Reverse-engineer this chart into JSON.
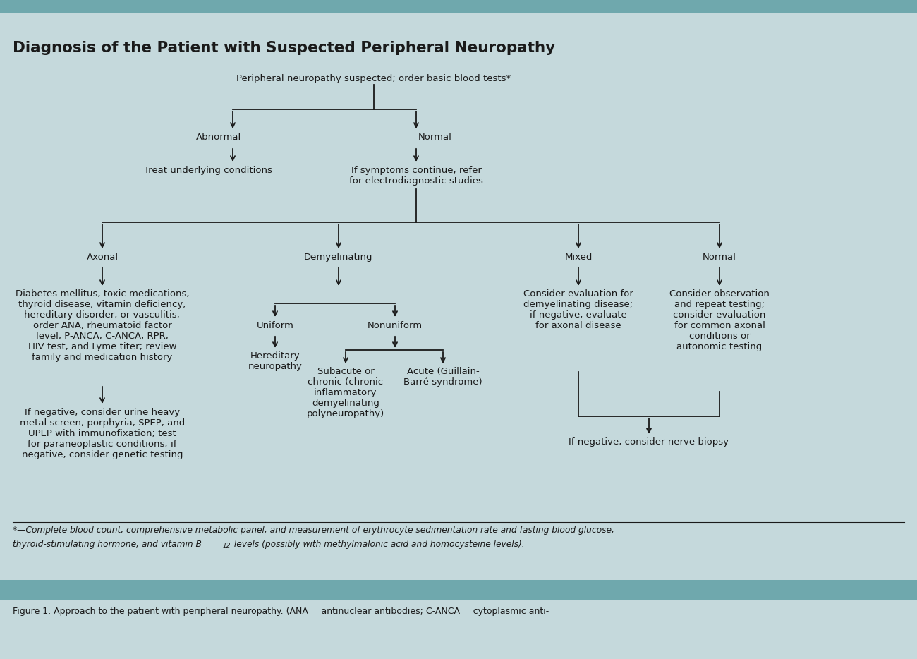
{
  "title": "Diagnosis of the Patient with Suspected Peripheral Neuropathy",
  "bg_color": "#c5d9dc",
  "header_color": "#6fa8ad",
  "footer_color": "#6fa8ad",
  "text_color": "#1a1a1a",
  "line_color": "#1a1a1a",
  "footnote_line1": "*—Complete blood count, comprehensive metabolic panel, and measurement of erythrocyte sedimentation rate and fasting blood glucose,",
  "footnote_line2a": "thyroid-stimulating hormone, and vitamin B",
  "footnote_line2b": "12",
  "footnote_line2c": " levels (possibly with methylmalonic acid and homocysteine levels).",
  "figure_caption": "Figure 1. Approach to the patient with peripheral neuropathy. (ANA = antinuclear antibodies; C-ANCA = cytoplasmic anti-"
}
